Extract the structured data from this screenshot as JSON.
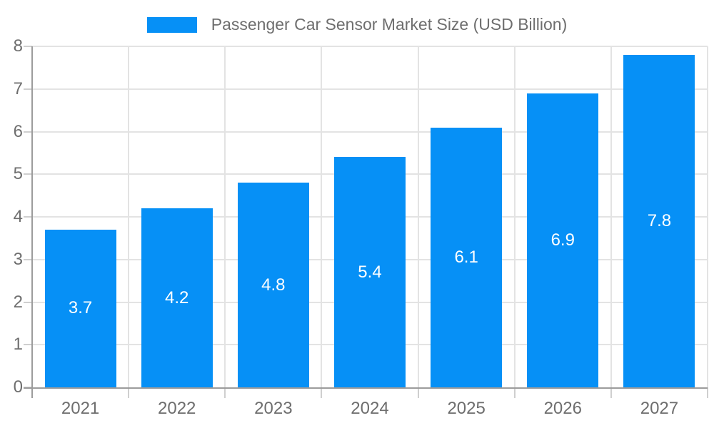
{
  "chart_data": {
    "type": "bar",
    "title": "Passenger Car Sensor Market Size (USD Billion)",
    "categories": [
      "2021",
      "2022",
      "2023",
      "2024",
      "2025",
      "2026",
      "2027"
    ],
    "values": [
      3.7,
      4.2,
      4.8,
      5.4,
      6.1,
      6.9,
      7.8
    ],
    "value_labels": [
      "3.7",
      "4.2",
      "4.8",
      "5.4",
      "6.1",
      "6.9",
      "7.8"
    ],
    "xlabel": "",
    "ylabel": "",
    "ylim": [
      0,
      8
    ],
    "yticks": [
      0,
      1,
      2,
      3,
      4,
      5,
      6,
      7,
      8
    ],
    "grid": true,
    "legend_position": "top",
    "bar_labels_shown": true
  },
  "colors": {
    "accent": "#0690F6",
    "grid": "#e3e3e3",
    "axis": "#9c9c9c",
    "tick": "#cfcfcf",
    "text": "#6e6e6e",
    "bar_label": "#ffffff",
    "background": "#ffffff"
  }
}
